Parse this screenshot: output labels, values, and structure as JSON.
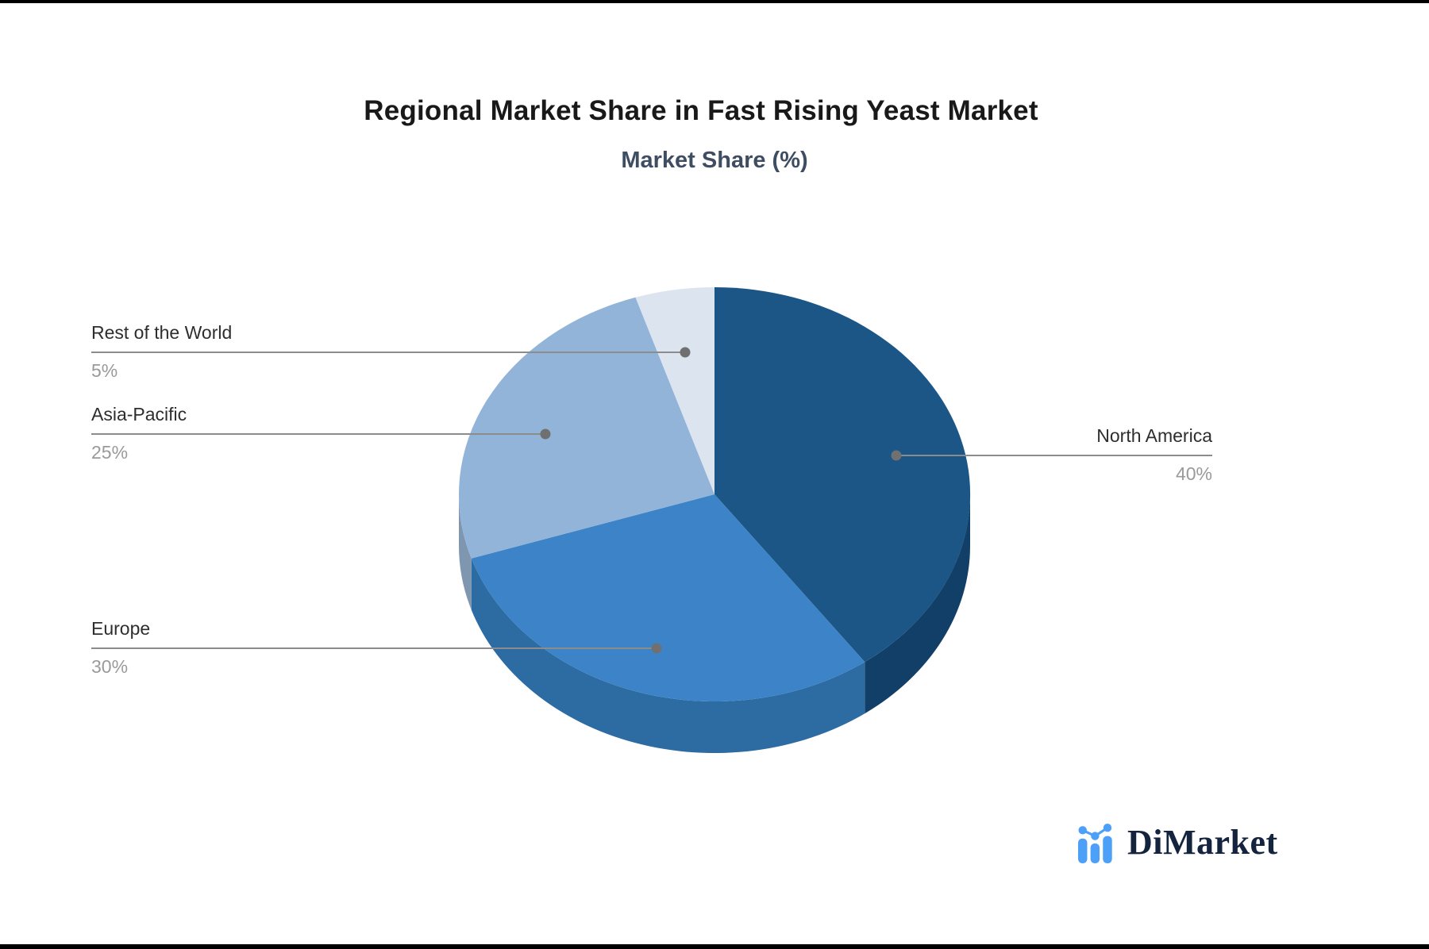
{
  "title": "Regional Market Share in Fast Rising Yeast Market",
  "subtitle": "Market Share (%)",
  "chart_data": {
    "type": "pie",
    "style": "3d",
    "title": "Regional Market Share in Fast Rising Yeast Market",
    "subtitle": "Market Share (%)",
    "unit": "%",
    "start_angle_deg": 0,
    "direction": "clockwise",
    "legend": "leader-line-callouts",
    "slices": [
      {
        "label": "North America",
        "value": 40,
        "pct_label": "40%",
        "color": "#1B5687",
        "side_color": "#123F68"
      },
      {
        "label": "Europe",
        "value": 30,
        "pct_label": "30%",
        "color": "#3C84C7",
        "side_color": "#2D6BA3"
      },
      {
        "label": "Asia-Pacific",
        "value": 25,
        "pct_label": "25%",
        "color": "#92B4D8",
        "side_color": "#7E96AF"
      },
      {
        "label": "Rest of the World",
        "value": 5,
        "pct_label": "5%",
        "color": "#DCE4EF",
        "side_color": "#C6CFDC"
      }
    ]
  },
  "callout_style": {
    "line_color": "#8c8c8c",
    "dot_color": "#707070",
    "label_color": "#2e2e2e",
    "value_color": "#9a9a9a"
  },
  "logo": {
    "text": "DiMarket",
    "text_color": "#14233e",
    "icon": "bar-chart-with-trend-icon",
    "icon_color": "#4DA0F8"
  }
}
